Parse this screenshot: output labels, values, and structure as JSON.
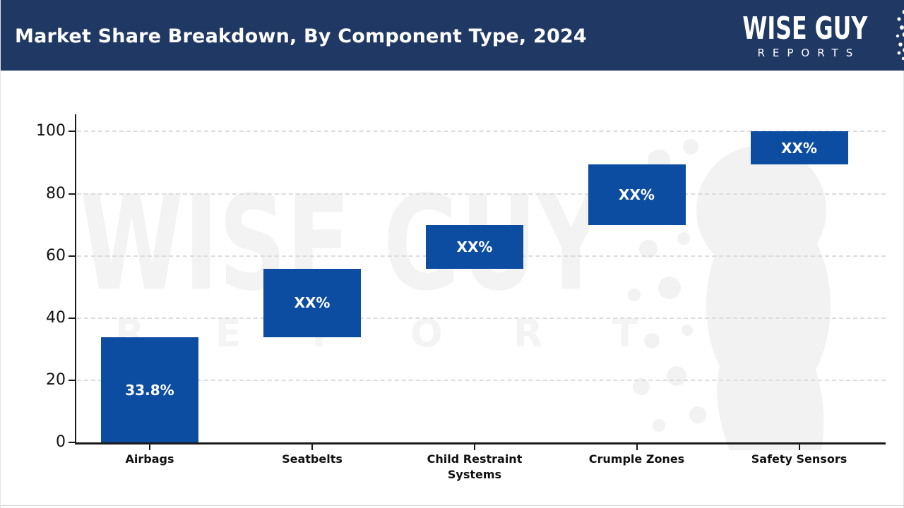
{
  "header": {
    "title": "Market Share Breakdown, By Component Type, 2024",
    "logo": {
      "line1": "WISE GUY",
      "line2": "REPORTS"
    }
  },
  "watermark": {
    "line1": "WISE GUY",
    "line2": "REPORTS"
  },
  "chart_data": {
    "type": "bar",
    "subtype": "waterfall",
    "title": "Market Share Breakdown, By Component Type, 2024",
    "categories": [
      "Airbags",
      "Seatbelts",
      "Child Restraint Systems",
      "Crumple Zones",
      "Safety Sensors"
    ],
    "segments": [
      {
        "category": "Airbags",
        "start": 0,
        "end": 33.8,
        "label": "33.8%"
      },
      {
        "category": "Seatbelts",
        "start": 33.8,
        "end": 55.9,
        "label": "XX%"
      },
      {
        "category": "Child Restraint Systems",
        "start": 55.9,
        "end": 70.0,
        "label": "XX%"
      },
      {
        "category": "Crumple Zones",
        "start": 70.0,
        "end": 89.5,
        "label": "XX%"
      },
      {
        "category": "Safety Sensors",
        "start": 89.5,
        "end": 100,
        "label": "XX%"
      }
    ],
    "yticks": [
      0,
      20,
      40,
      60,
      80,
      100
    ],
    "ylim": [
      0,
      105
    ],
    "grid": "horizontal-dashed",
    "legend": "none",
    "bar_color": "#0c4da2",
    "bar_label_color": "#ffffff"
  },
  "colors": {
    "header_bg": "#1f3864",
    "bar": "#0c4da2",
    "grid": "#dcdcdc",
    "axis": "#1a1a1a",
    "watermark": "#f3f3f3"
  }
}
